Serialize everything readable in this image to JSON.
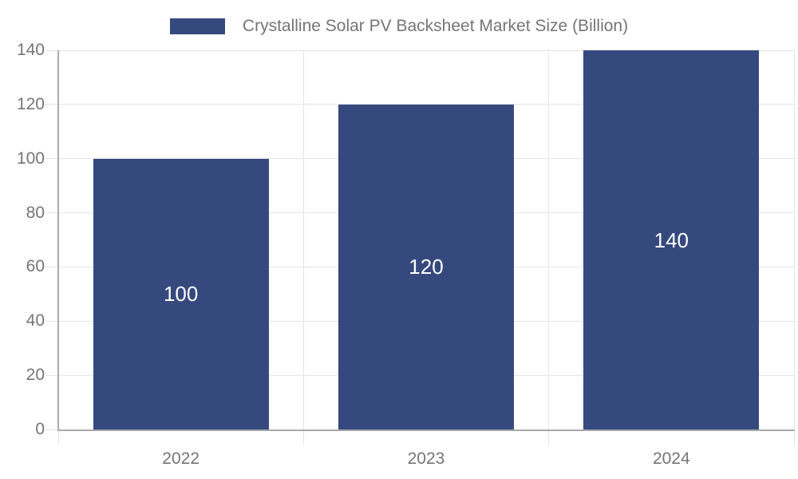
{
  "legend": {
    "label": "Crystalline Solar PV Backsheet Market Size (Billion)",
    "position": "top-center"
  },
  "chart_data": {
    "type": "bar",
    "title": "Crystalline Solar PV Backsheet Market Size (Billion)",
    "categories": [
      "2022",
      "2023",
      "2024"
    ],
    "values": [
      100,
      120,
      140
    ],
    "bar_value_labels": [
      "100",
      "120",
      "140"
    ],
    "bar_value_label_position": "inside-center",
    "xlabel": "",
    "ylabel": "",
    "ylim": [
      0,
      140
    ],
    "yticks": [
      0,
      20,
      40,
      60,
      80,
      100,
      120,
      140
    ],
    "grid": "horizontal gridlines plus vertical category separators",
    "legend_entries": [
      "Crystalline Solar PV Backsheet Market Size (Billion)"
    ],
    "legend_position": "top-center"
  },
  "colors": {
    "bar": "#36497F",
    "grid": "#E4E4E4",
    "axis": "#A9A9A9",
    "tick_text": "#757575",
    "bar_label_text": "#FFFFFF",
    "background": "#FFFFFF"
  }
}
